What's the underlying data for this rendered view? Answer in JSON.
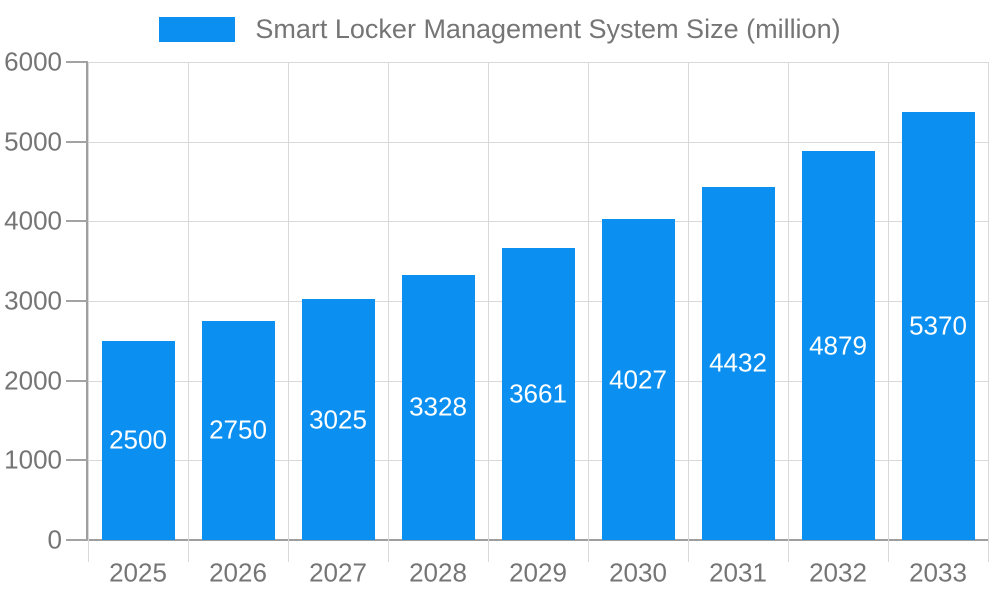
{
  "chart": {
    "colors": {
      "bar": "#0b90f2",
      "grid": "#d9d9d9",
      "axis": "#9e9e9e",
      "tick_text": "#757575",
      "value_label": "#ffffff",
      "background": "#ffffff"
    }
  },
  "chart_data": {
    "type": "bar",
    "title": "Smart Locker Management System Size (million)",
    "legend_label": "Smart Locker Management System Size (million)",
    "legend_position": "top",
    "categories": [
      "2025",
      "2026",
      "2027",
      "2028",
      "2029",
      "2030",
      "2031",
      "2032",
      "2033"
    ],
    "values": [
      2500,
      2750,
      3025,
      3328,
      3661,
      4027,
      4432,
      4879,
      5370
    ],
    "series_name": "Smart Locker Management System Size (million)",
    "xlabel": "",
    "ylabel": "",
    "ylim": [
      0,
      6000
    ],
    "y_ticks": [
      0,
      1000,
      2000,
      3000,
      4000,
      5000,
      6000
    ],
    "grid": true,
    "value_labels": "inside-center"
  }
}
